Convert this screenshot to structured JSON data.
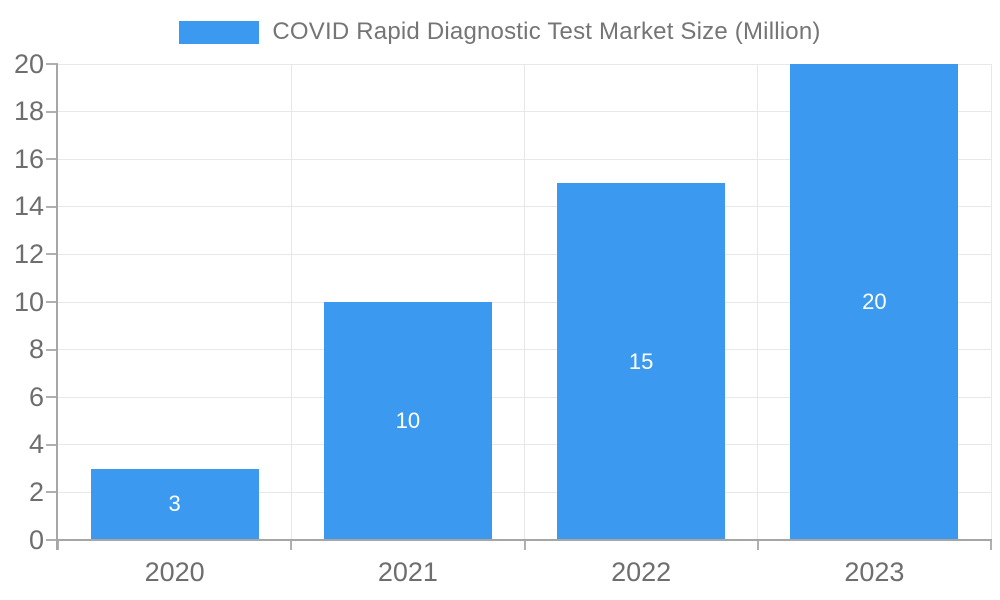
{
  "chart_data": {
    "type": "bar",
    "title": "COVID Rapid Diagnostic Test Market Size (Million)",
    "categories": [
      "2020",
      "2021",
      "2022",
      "2023"
    ],
    "series": [
      {
        "name": "COVID Rapid Diagnostic Test Market Size (Million)",
        "values": [
          3,
          10,
          15,
          20
        ]
      }
    ],
    "data_labels": [
      "3",
      "10",
      "15",
      "20"
    ],
    "xlabel": "",
    "ylabel": "",
    "ylim": [
      0,
      20
    ],
    "ytick_step": 2,
    "ytick_labels": [
      "0",
      "2",
      "4",
      "6",
      "8",
      "10",
      "12",
      "14",
      "16",
      "18",
      "20"
    ],
    "grid": true,
    "legend_position": "top-center"
  },
  "colors": {
    "bar": "#3B99F0",
    "gridline": "#E8E8E8",
    "axis_line": "#A6A6A6",
    "tick_mark": "#B0B0B0",
    "axis_label": "#6E6E6E",
    "legend_text": "#757575",
    "bar_value_label": "#FFFFFF",
    "background": "#FFFFFF"
  }
}
